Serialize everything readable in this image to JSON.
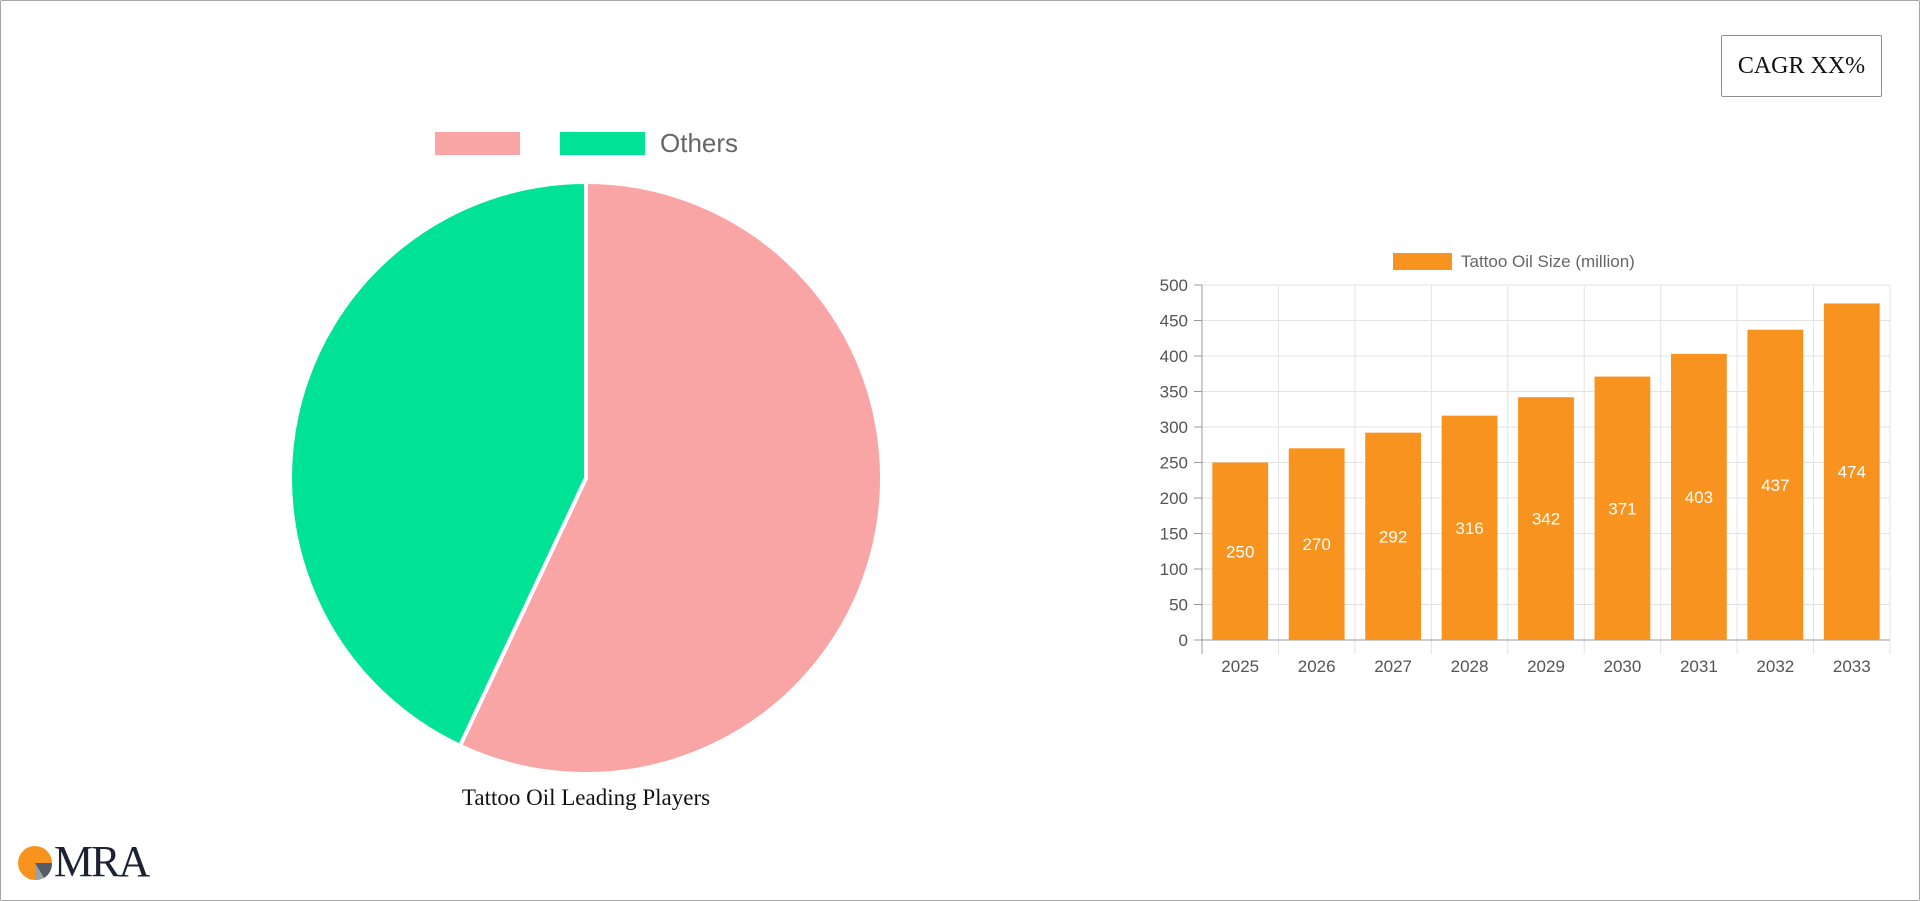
{
  "cagr_label": "CAGR XX%",
  "logo_text": "MRA",
  "chart_data": [
    {
      "type": "pie",
      "title": "Tattoo Oil Leading Players",
      "legend": [
        "",
        "Others"
      ],
      "legend_position": "top",
      "values": [
        57,
        43
      ],
      "colors": [
        "#f9a5a6",
        "#00e396"
      ]
    },
    {
      "type": "bar",
      "legend": [
        "Tattoo Oil Size (million)"
      ],
      "legend_position": "top",
      "categories": [
        "2025",
        "2026",
        "2027",
        "2028",
        "2029",
        "2030",
        "2031",
        "2032",
        "2033"
      ],
      "series": [
        {
          "name": "Tattoo Oil Size (million)",
          "values": [
            250,
            270,
            292,
            316,
            342,
            371,
            403,
            437,
            474
          ]
        }
      ],
      "ylim": [
        0,
        500
      ],
      "yticks": [
        0,
        50,
        100,
        150,
        200,
        250,
        300,
        350,
        400,
        450,
        500
      ],
      "grid": true,
      "bar_color": "#f7931e"
    }
  ]
}
